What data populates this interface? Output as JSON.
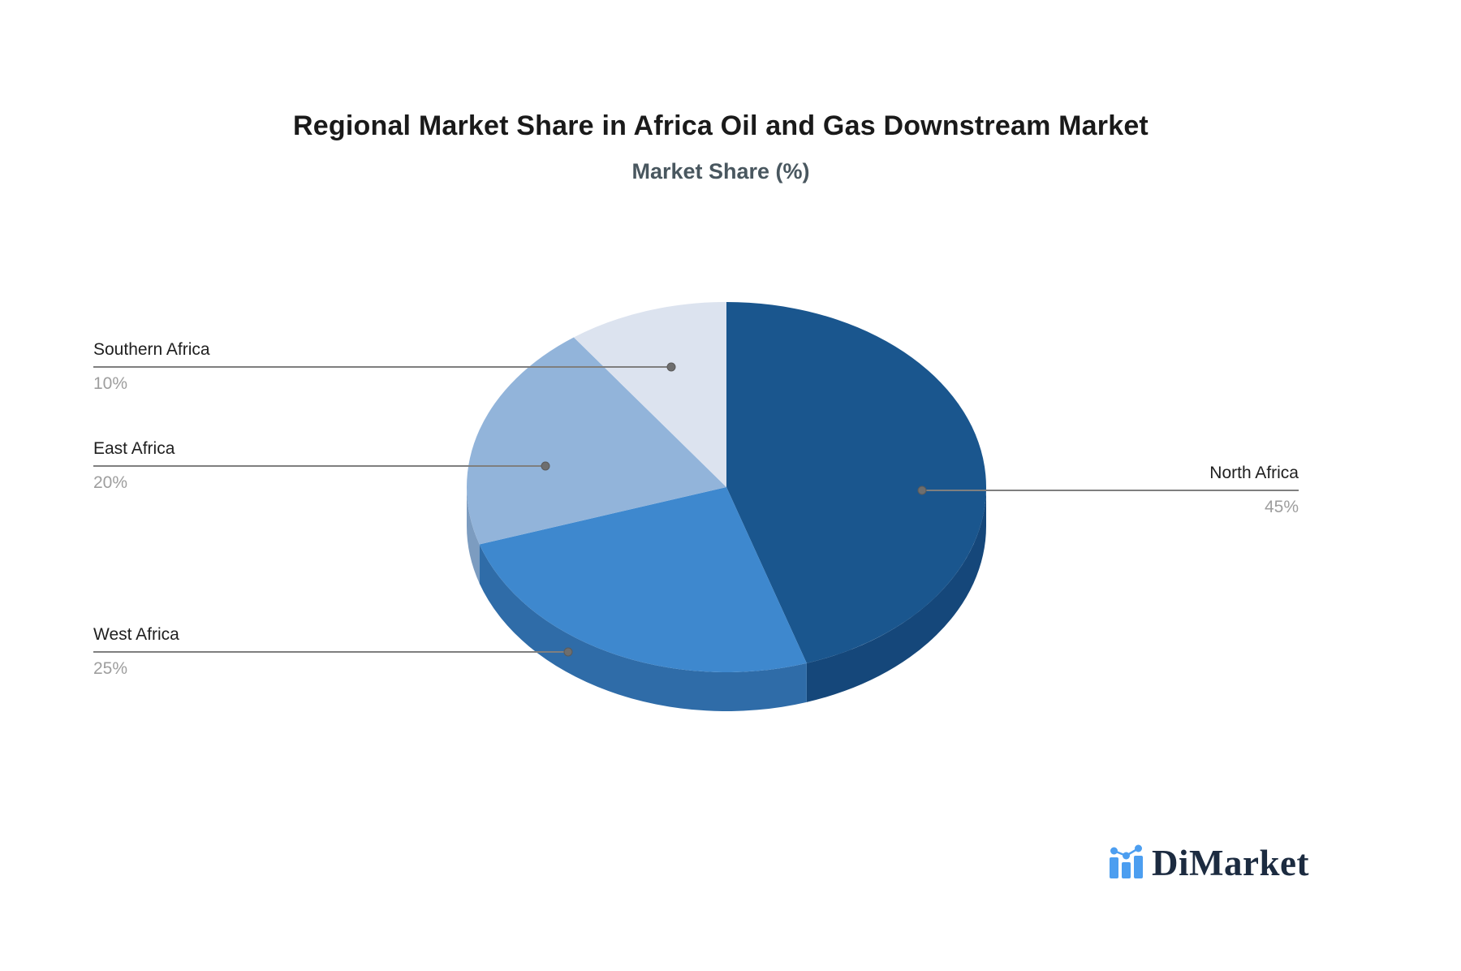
{
  "header": {
    "title": "Regional Market Share in Africa Oil and Gas Downstream Market",
    "subtitle": "Market Share (%)"
  },
  "chart_data": {
    "type": "pie",
    "style": "3d",
    "title": "Regional Market Share in Africa Oil and Gas Downstream Market",
    "subtitle": "Market Share (%)",
    "unit": "%",
    "start_angle_deg": 0,
    "direction": "clockwise",
    "legend_position": "none",
    "slices": [
      {
        "label": "North Africa",
        "value": 45,
        "display": "45%",
        "color": "#1A568E",
        "side_color": "#15477A",
        "label_side": "right"
      },
      {
        "label": "West Africa",
        "value": 25,
        "display": "25%",
        "color": "#3E88CE",
        "side_color": "#2F6CA8",
        "label_side": "left"
      },
      {
        "label": "East Africa",
        "value": 20,
        "display": "20%",
        "color": "#92B4DA",
        "side_color": "#7C9CC0",
        "label_side": "left"
      },
      {
        "label": "Southern Africa",
        "value": 10,
        "display": "10%",
        "color": "#DCE3EF",
        "side_color": "#C2CDDE",
        "label_side": "left"
      }
    ],
    "annotation_colors": {
      "leader_line": "#7f7f7f",
      "anchor_dot": "#6e6e6e",
      "label_text": "#1f1f1f",
      "value_text": "#9e9e9e"
    }
  },
  "logo": {
    "text": "DiMarket",
    "icon": "bar-chart-icon",
    "accent_color": "#4C9EF0",
    "text_color": "#1c2b40"
  }
}
